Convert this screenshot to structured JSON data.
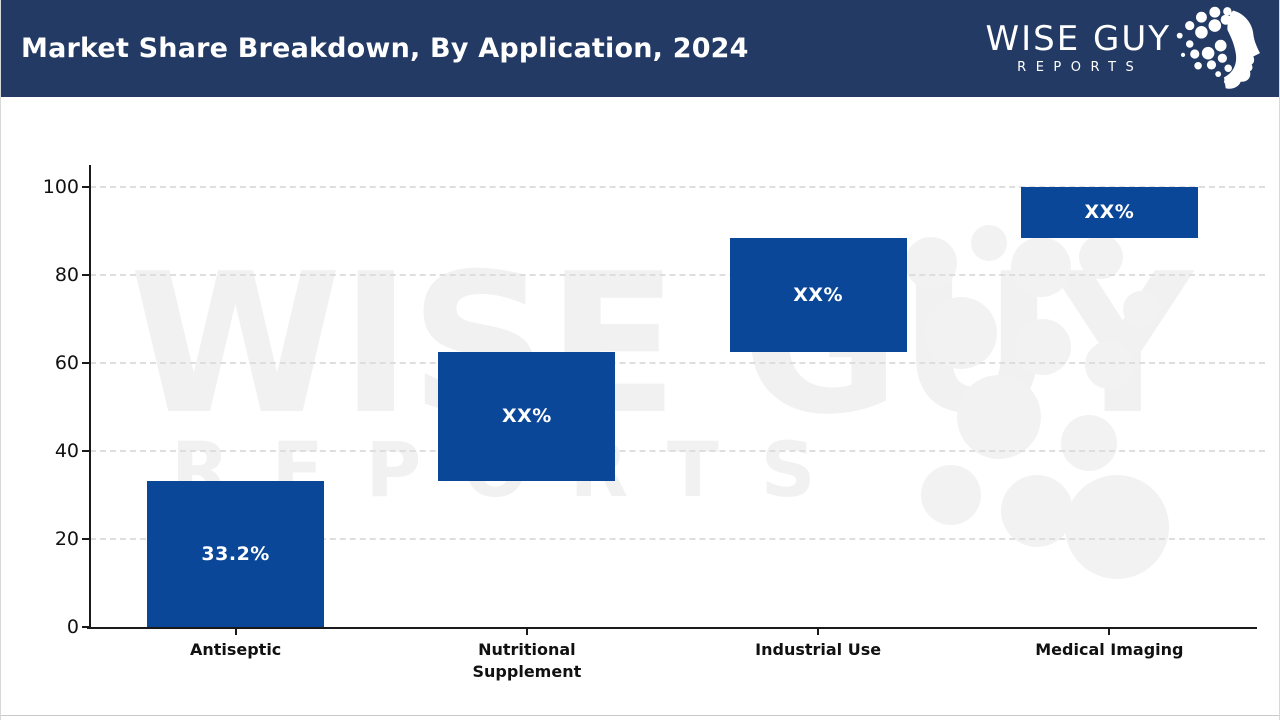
{
  "header": {
    "title": "Market Share Breakdown, By Application, 2024",
    "bg_color": "#233a64",
    "logo": {
      "line1": "WISE GUY",
      "line2": "REPORTS"
    }
  },
  "watermark": {
    "line1": "WISE GUY",
    "line2": "REPORTS"
  },
  "chart_data": {
    "type": "bar",
    "subtype": "waterfall",
    "title": "Market Share Breakdown, By Application, 2024",
    "categories": [
      "Antiseptic",
      "Nutritional\nSupplement",
      "Industrial Use",
      "Medical Imaging"
    ],
    "segments": [
      {
        "category": "Antiseptic",
        "start": 0,
        "end": 33.2,
        "label": "33.2%"
      },
      {
        "category": "Nutritional Supplement",
        "start": 33.2,
        "end": 62.5,
        "label": "XX%"
      },
      {
        "category": "Industrial Use",
        "start": 62.5,
        "end": 88.5,
        "label": "XX%"
      },
      {
        "category": "Medical Imaging",
        "start": 88.5,
        "end": 100,
        "label": "XX%"
      }
    ],
    "yticks": [
      0,
      20,
      40,
      60,
      80,
      100
    ],
    "ylim": [
      0,
      105
    ],
    "xlabel": "",
    "ylabel": "",
    "bar_color": "#0b4798",
    "label_color": "#ffffff",
    "grid": true,
    "gridline_style": "dashed",
    "legend": "none"
  }
}
